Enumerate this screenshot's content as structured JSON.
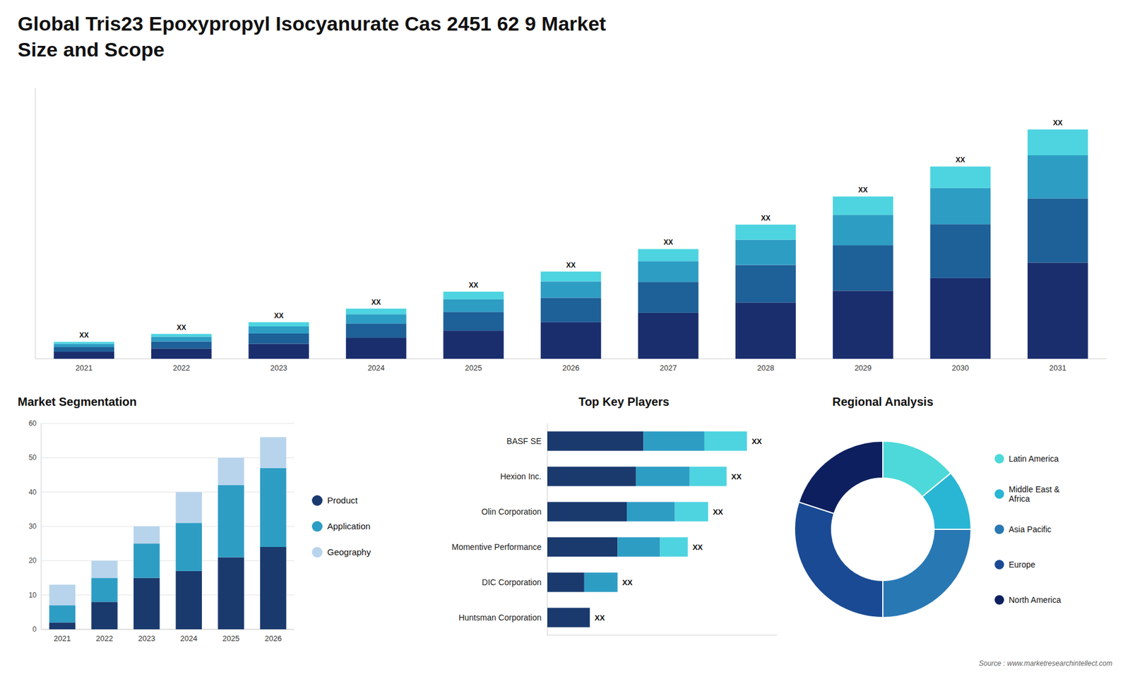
{
  "chart_data": [
    {
      "type": "bar",
      "title": "Global Tris23 Epoxypropyl Isocyanurate Cas 2451 62 9 Market",
      "subtitle": "Size and Scope",
      "stacked": true,
      "categories": [
        "2021",
        "2022",
        "2023",
        "2024",
        "2025",
        "2026",
        "2027",
        "2028",
        "2029",
        "2030",
        "2031"
      ],
      "series": [
        {
          "color": "#1a2e6e",
          "values": [
            1.5,
            2.2,
            3.2,
            4.5,
            6.0,
            7.8,
            9.8,
            12.0,
            14.5,
            17.2,
            20.5
          ]
        },
        {
          "color": "#1e6098",
          "values": [
            1.0,
            1.5,
            2.2,
            3.0,
            4.0,
            5.2,
            6.6,
            8.0,
            9.7,
            11.5,
            13.7
          ]
        },
        {
          "color": "#2e9dc4",
          "values": [
            0.7,
            1.0,
            1.5,
            2.0,
            2.7,
            3.5,
            4.4,
            5.4,
            6.5,
            7.7,
            9.2
          ]
        },
        {
          "color": "#4dd4e0",
          "values": [
            0.4,
            0.6,
            0.9,
            1.2,
            1.6,
            2.1,
            2.6,
            3.2,
            3.9,
            4.6,
            5.5
          ]
        }
      ],
      "ylim": [
        0,
        57.702
      ],
      "tick_labels": "x",
      "annotations": [
        "XX",
        "XX",
        "XX",
        "XX",
        "XX",
        "XX",
        "XX",
        "XX",
        "XX",
        "XX",
        "XX"
      ]
    },
    {
      "type": "bar",
      "title": "Market Segmentation",
      "stacked": true,
      "categories": [
        "2021",
        "2022",
        "2023",
        "2024",
        "2025",
        "2026"
      ],
      "series": [
        {
          "name": "Product",
          "color": "#1a3a6e",
          "values": [
            2,
            8,
            15,
            17,
            21,
            24
          ]
        },
        {
          "name": "Application",
          "color": "#2e9dc4",
          "values": [
            5,
            7,
            10,
            14,
            21,
            23
          ]
        },
        {
          "name": "Geography",
          "color": "#b8d4ec",
          "values": [
            6,
            5,
            5,
            9,
            8,
            9
          ]
        }
      ],
      "ylim": [
        0,
        60
      ],
      "yticks": [
        0,
        10,
        20,
        30,
        40,
        50,
        60
      ],
      "grid": true,
      "legend": "right"
    },
    {
      "type": "bar",
      "title": "Top Key Players",
      "orientation": "horizontal",
      "stacked": true,
      "categories": [
        "BASF SE",
        "Hexion Inc.",
        "Olin Corporation",
        "Momentive Performance",
        "DIC Corporation",
        "Huntsman Corporation"
      ],
      "series": [
        {
          "color": "#1a3a6e",
          "values": [
            5.2,
            4.8,
            4.3,
            3.8,
            2.0,
            2.3
          ]
        },
        {
          "color": "#2e9dc4",
          "values": [
            3.3,
            2.9,
            2.6,
            2.3,
            1.8,
            0.0
          ]
        },
        {
          "color": "#4dd4e0",
          "values": [
            2.3,
            2.0,
            1.8,
            1.5,
            0.0,
            0.0
          ]
        }
      ],
      "xlim": [
        0,
        12.42
      ],
      "tick_labels": "y",
      "annotations": [
        "XX",
        "XX",
        "XX",
        "XX",
        "XX",
        "XX"
      ]
    },
    {
      "type": "donut",
      "title": "Regional Analysis",
      "categories": [
        "Latin America",
        "Middle East &\nAfrica",
        "Asia Pacific",
        "Europe",
        "North America"
      ],
      "values": [
        14,
        11,
        25,
        30,
        20
      ],
      "colors": [
        "#4dd9d9",
        "#29b5d4",
        "#2878b4",
        "#1a4a94",
        "#0d1f5e"
      ],
      "legend": "right",
      "annotations": [
        "Source : www.marketresearchintellect.com"
      ]
    }
  ]
}
